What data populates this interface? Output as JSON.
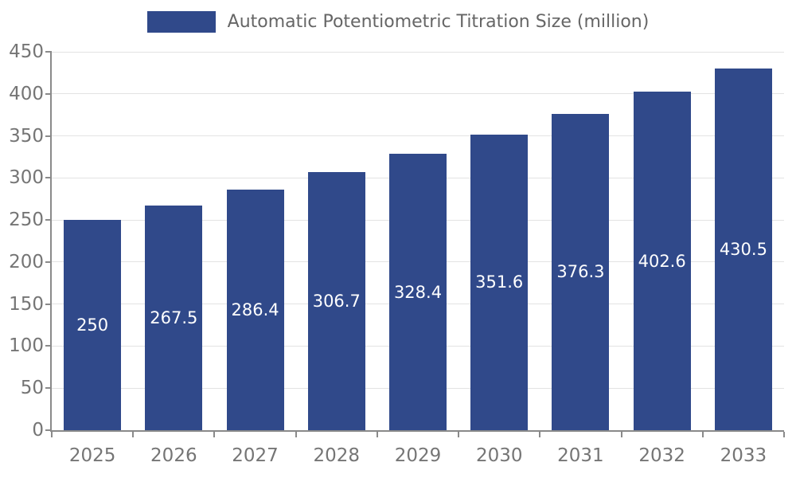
{
  "chart_data": {
    "type": "bar",
    "title": "",
    "legend": "Automatic Potentiometric Titration Size (million)",
    "legend_position": "top",
    "categories": [
      "2025",
      "2026",
      "2027",
      "2028",
      "2029",
      "2030",
      "2031",
      "2032",
      "2033"
    ],
    "values": [
      250,
      267.5,
      286.4,
      306.7,
      328.4,
      351.6,
      376.3,
      402.6,
      430.5
    ],
    "value_labels": [
      "250",
      "267.5",
      "286.4",
      "306.7",
      "328.4",
      "351.6",
      "376.3",
      "402.6",
      "430.5"
    ],
    "xlabel": "",
    "ylabel": "",
    "ylim": [
      0,
      450
    ],
    "ytick_interval": 50,
    "yticks": [
      0,
      50,
      100,
      150,
      200,
      250,
      300,
      350,
      400,
      450
    ],
    "ytick_labels": [
      "0",
      "50",
      "100",
      "150",
      "200",
      "250",
      "300",
      "350",
      "400",
      "450"
    ],
    "grid": true,
    "colors": {
      "bar": "#30498a",
      "value_label": "#ffffff",
      "axis_text": "#757575",
      "legend_text": "#666666",
      "grid_line": "#e3e3e3",
      "axis_line": "#8a8a8a",
      "background": "#ffffff"
    }
  }
}
